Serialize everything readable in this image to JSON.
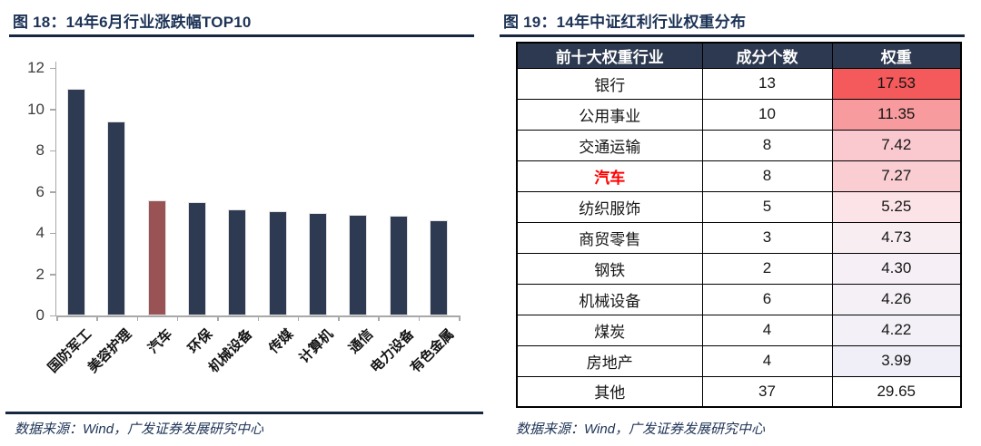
{
  "left": {
    "title": "图 18：14年6月行业涨跌幅TOP10",
    "source": "数据来源：Wind，广发证券发展研究中心"
  },
  "right": {
    "title": "图 19：14年中证红利行业权重分布",
    "source": "数据来源：Wind，广发证券发展研究中心",
    "table": {
      "headers": [
        "前十大权重行业",
        "成分个数",
        "权重"
      ],
      "header_bg": "#2d3950",
      "highlight_text_color": "#ff0000",
      "rows": [
        {
          "industry": "银行",
          "count": "13",
          "weight": "17.53",
          "weight_bg": "#f4595b",
          "red": false
        },
        {
          "industry": "公用事业",
          "count": "10",
          "weight": "11.35",
          "weight_bg": "#f79b9e",
          "red": false
        },
        {
          "industry": "交通运输",
          "count": "8",
          "weight": "7.42",
          "weight_bg": "#fac9cf",
          "red": false
        },
        {
          "industry": "汽车",
          "count": "8",
          "weight": "7.27",
          "weight_bg": "#facdd3",
          "red": true
        },
        {
          "industry": "纺织服饰",
          "count": "5",
          "weight": "5.25",
          "weight_bg": "#fce3e7",
          "red": false
        },
        {
          "industry": "商贸零售",
          "count": "3",
          "weight": "4.73",
          "weight_bg": "#f8eef2",
          "red": false
        },
        {
          "industry": "钢铁",
          "count": "2",
          "weight": "4.30",
          "weight_bg": "#f6f0f6",
          "red": false
        },
        {
          "industry": "机械设备",
          "count": "6",
          "weight": "4.26",
          "weight_bg": "#f5f0f6",
          "red": false
        },
        {
          "industry": "煤炭",
          "count": "4",
          "weight": "4.22",
          "weight_bg": "#f3f0f7",
          "red": false
        },
        {
          "industry": "房地产",
          "count": "4",
          "weight": "3.99",
          "weight_bg": "#f0eff8",
          "red": false
        },
        {
          "industry": "其他",
          "count": "37",
          "weight": "29.65",
          "weight_bg": "#ffffff",
          "red": false
        }
      ]
    }
  },
  "chart_data": [
    {
      "type": "bar",
      "title": "图 18：14年6月行业涨跌幅TOP10",
      "categories": [
        "国防军工",
        "美容护理",
        "汽车",
        "环保",
        "机械设备",
        "传媒",
        "计算机",
        "通信",
        "电力设备",
        "有色金属"
      ],
      "values": [
        11.0,
        9.4,
        5.6,
        5.5,
        5.15,
        5.05,
        4.95,
        4.9,
        4.85,
        4.6
      ],
      "highlight_index": 2,
      "bar_color": "#2d3a52",
      "highlight_color": "#9a5355",
      "xlabel": "",
      "ylabel": "",
      "ylim": [
        0,
        12
      ],
      "ytick_step": 2,
      "grid": false,
      "legend": false
    },
    {
      "type": "table",
      "title": "图 19：14年中证红利行业权重分布",
      "columns": [
        "前十大权重行业",
        "成分个数",
        "权重"
      ],
      "rows": [
        [
          "银行",
          13,
          17.53
        ],
        [
          "公用事业",
          10,
          11.35
        ],
        [
          "交通运输",
          8,
          7.42
        ],
        [
          "汽车",
          8,
          7.27
        ],
        [
          "纺织服饰",
          5,
          5.25
        ],
        [
          "商贸零售",
          3,
          4.73
        ],
        [
          "钢铁",
          2,
          4.3
        ],
        [
          "机械设备",
          6,
          4.26
        ],
        [
          "煤炭",
          4,
          4.22
        ],
        [
          "房地产",
          4,
          3.99
        ],
        [
          "其他",
          37,
          29.65
        ]
      ]
    }
  ],
  "colors": {
    "title_navy": "#1d3356",
    "rule": "#18273f",
    "axis_gray": "#a8a8a8",
    "table_header_bg": "#2d3950",
    "highlight_red_text": "#ff0000"
  }
}
